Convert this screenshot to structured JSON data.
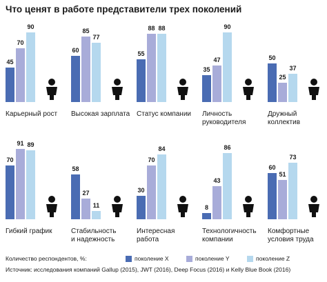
{
  "chart_data": {
    "type": "bar",
    "title": "Что ценят в работе представители трех поколений",
    "categories": [
      "Карьерный рост",
      "Высокая зарплата",
      "Статус компании",
      "Личность\nруководителя",
      "Дружный\nколлектив",
      "Гибкий график",
      "Стабильность\nи надежность",
      "Интересная\nработа",
      "Технологичность\nкомпании",
      "Комфортные\nусловия труда"
    ],
    "series": [
      {
        "name": "поколение X",
        "color": "#4a6cb3",
        "values": [
          45,
          60,
          55,
          35,
          50,
          70,
          58,
          30,
          8,
          60
        ]
      },
      {
        "name": "поколение Y",
        "color": "#a8acd9",
        "values": [
          70,
          85,
          88,
          47,
          25,
          91,
          27,
          70,
          43,
          51
        ]
      },
      {
        "name": "поколение Z",
        "color": "#b5d8ee",
        "values": [
          90,
          77,
          88,
          90,
          37,
          89,
          11,
          84,
          86,
          73
        ]
      }
    ],
    "legend_title": "Количество респондентов, %:",
    "source": "Источник: исследования компаний Gallup (2015), JWT (2016), Deep Focus (2016) и Kelly Blue Book (2016)"
  }
}
